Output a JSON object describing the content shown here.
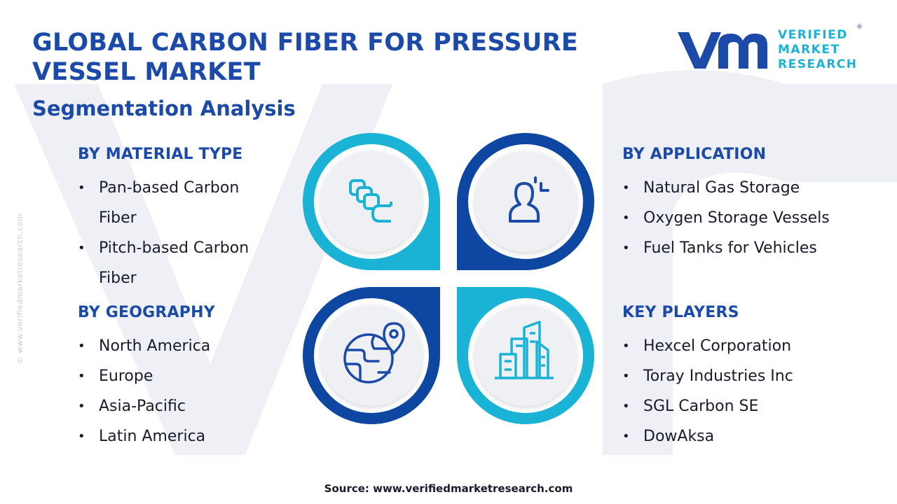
{
  "header": {
    "title": "GLOBAL CARBON FIBER FOR PRESSURE VESSEL MARKET",
    "subtitle": "Segmentation Analysis"
  },
  "logo": {
    "lines": [
      "VERIFIED",
      "MARKET",
      "RESEARCH"
    ],
    "registered": "®"
  },
  "watermark": {
    "side_text": "© www.verifiedmarketresearch.com"
  },
  "segments": {
    "material": {
      "heading": "BY MATERIAL TYPE",
      "items": [
        "Pan-based Carbon Fiber",
        "Pitch-based Carbon Fiber"
      ]
    },
    "application": {
      "heading": "BY APPLICATION",
      "items": [
        "Natural Gas Storage",
        "Oxygen Storage Vessels",
        "Fuel Tanks for Vehicles"
      ]
    },
    "geography": {
      "heading": "BY GEOGRAPHY",
      "items": [
        "North America",
        "Europe",
        "Asia-Pacific",
        "Latin America"
      ]
    },
    "players": {
      "heading": "KEY PLAYERS",
      "items": [
        "Hexcel Corporation",
        "Toray Industries Inc",
        "SGL Carbon SE",
        "DowAksa"
      ]
    }
  },
  "icons": {
    "top_left": "stacked-layers-icon",
    "top_right": "user-target-icon",
    "bottom_left": "globe-location-icon",
    "bottom_right": "city-buildings-icon"
  },
  "colors": {
    "navy": "#1b4aa8",
    "cyan": "#1ab3d6",
    "dark_blue": "#0d47a1",
    "text": "#1a1a2e"
  },
  "footer": {
    "source": "Source: www.verifiedmarketresearch.com"
  }
}
